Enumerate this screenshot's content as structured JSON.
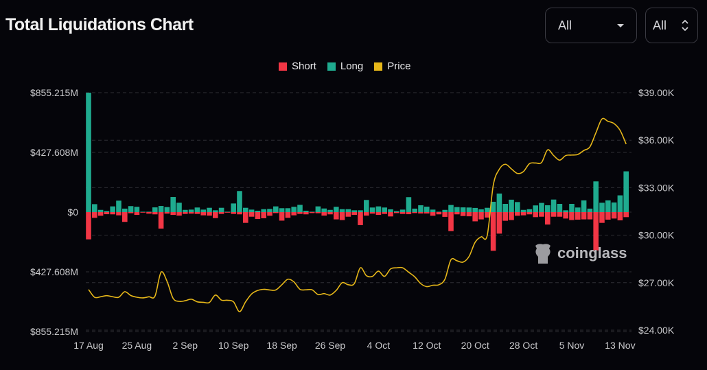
{
  "header": {
    "title": "Total Liquidations Chart"
  },
  "filters": [
    {
      "value": "All",
      "icon": "caret-down-icon"
    },
    {
      "value": "All",
      "icon": "chevron-up-down-icon"
    }
  ],
  "watermark": {
    "text": "coinglass",
    "icon": "coinglass-logo-icon"
  },
  "colors": {
    "short": "#f23645",
    "long": "#1fab8f",
    "price": "#e6b719",
    "background": "#05050a",
    "grid": "#2e2e34"
  },
  "chart_data": {
    "type": "bar",
    "title": "Total Liquidations Chart",
    "legend": {
      "position": "top",
      "entries": [
        "Short",
        "Long",
        "Price"
      ]
    },
    "grid": true,
    "y_left": {
      "ticks": [
        "$855.215M",
        "$427.608M",
        "$0",
        "$427.608M",
        "$855.215M"
      ],
      "ylim": [
        -855.215,
        855.215
      ],
      "unit": "M USD"
    },
    "y_right": {
      "ticks": [
        "$39.00K",
        "$36.00K",
        "$33.00K",
        "$30.00K",
        "$27.00K",
        "$24.00K"
      ],
      "ylim": [
        24000,
        39000
      ]
    },
    "x_ticks": [
      "17 Aug",
      "25 Aug",
      "2 Sep",
      "10 Sep",
      "18 Sep",
      "26 Sep",
      "4 Oct",
      "12 Oct",
      "20 Oct",
      "28 Oct",
      "5 Nov",
      "13 Nov"
    ],
    "categories": [
      "17 Aug",
      "18 Aug",
      "19 Aug",
      "20 Aug",
      "21 Aug",
      "22 Aug",
      "23 Aug",
      "24 Aug",
      "25 Aug",
      "26 Aug",
      "27 Aug",
      "28 Aug",
      "29 Aug",
      "30 Aug",
      "31 Aug",
      "1 Sep",
      "2 Sep",
      "3 Sep",
      "4 Sep",
      "5 Sep",
      "6 Sep",
      "7 Sep",
      "8 Sep",
      "9 Sep",
      "10 Sep",
      "11 Sep",
      "12 Sep",
      "13 Sep",
      "14 Sep",
      "15 Sep",
      "16 Sep",
      "17 Sep",
      "18 Sep",
      "19 Sep",
      "20 Sep",
      "21 Sep",
      "22 Sep",
      "23 Sep",
      "24 Sep",
      "25 Sep",
      "26 Sep",
      "27 Sep",
      "28 Sep",
      "29 Sep",
      "30 Sep",
      "1 Oct",
      "2 Oct",
      "3 Oct",
      "4 Oct",
      "5 Oct",
      "6 Oct",
      "7 Oct",
      "8 Oct",
      "9 Oct",
      "10 Oct",
      "11 Oct",
      "12 Oct",
      "13 Oct",
      "14 Oct",
      "15 Oct",
      "16 Oct",
      "17 Oct",
      "18 Oct",
      "19 Oct",
      "20 Oct",
      "21 Oct",
      "22 Oct",
      "23 Oct",
      "24 Oct",
      "25 Oct",
      "26 Oct",
      "27 Oct",
      "28 Oct",
      "29 Oct",
      "30 Oct",
      "31 Oct",
      "1 Nov",
      "2 Nov",
      "3 Nov",
      "4 Nov",
      "5 Nov",
      "6 Nov",
      "7 Nov",
      "8 Nov",
      "9 Nov",
      "10 Nov",
      "11 Nov",
      "12 Nov",
      "13 Nov",
      "14 Nov"
    ],
    "series": [
      {
        "name": "Long",
        "values": [
          855,
          57,
          16,
          8,
          41,
          82,
          25,
          43,
          38,
          3,
          3,
          34,
          44,
          36,
          108,
          67,
          16,
          18,
          33,
          18,
          31,
          13,
          31,
          3,
          62,
          151,
          31,
          18,
          10,
          21,
          23,
          41,
          28,
          28,
          38,
          52,
          10,
          3,
          41,
          26,
          16,
          38,
          21,
          21,
          13,
          13,
          87,
          33,
          41,
          33,
          20,
          7,
          18,
          107,
          25,
          49,
          39,
          18,
          3,
          16,
          51,
          36,
          34,
          33,
          30,
          20,
          31,
          74,
          133,
          59,
          89,
          72,
          16,
          21,
          48,
          66,
          49,
          90,
          59,
          13,
          59,
          33,
          84,
          25,
          220,
          67,
          84,
          69,
          120,
          292
        ]
      },
      {
        "name": "Short",
        "values": [
          195,
          41,
          26,
          15,
          16,
          23,
          70,
          8,
          20,
          3,
          11,
          16,
          118,
          11,
          20,
          25,
          13,
          11,
          13,
          23,
          25,
          43,
          13,
          3,
          13,
          16,
          77,
          33,
          49,
          44,
          26,
          7,
          61,
          41,
          23,
          13,
          16,
          7,
          8,
          25,
          16,
          52,
          57,
          33,
          20,
          93,
          25,
          11,
          20,
          13,
          31,
          7,
          13,
          15,
          7,
          10,
          10,
          26,
          16,
          34,
          136,
          16,
          28,
          30,
          66,
          52,
          39,
          277,
          154,
          62,
          57,
          26,
          23,
          16,
          36,
          33,
          89,
          33,
          33,
          46,
          57,
          54,
          52,
          52,
          274,
          77,
          54,
          46,
          59,
          36
        ]
      },
      {
        "name": "Price",
        "values": [
          26570,
          26080,
          26110,
          26180,
          26110,
          26080,
          26430,
          26190,
          26080,
          26040,
          26110,
          26150,
          27660,
          27080,
          26010,
          25820,
          25860,
          25960,
          25790,
          25760,
          25750,
          26220,
          25900,
          25890,
          25790,
          25170,
          25790,
          26290,
          26510,
          26580,
          26540,
          26540,
          26870,
          27220,
          27050,
          26580,
          26550,
          26550,
          26250,
          26310,
          26220,
          26510,
          27000,
          26870,
          26940,
          27940,
          27440,
          27400,
          27730,
          27400,
          27870,
          27940,
          27940,
          27660,
          27370,
          26940,
          26750,
          26840,
          26870,
          27220,
          28450,
          28380,
          28300,
          28660,
          29550,
          29900,
          29980,
          33150,
          34160,
          34480,
          34190,
          33900,
          34020,
          34520,
          34560,
          34590,
          35390,
          35030,
          34740,
          35030,
          35060,
          35100,
          35350,
          35580,
          36470,
          37340,
          37190,
          37050,
          36620,
          35750
        ]
      }
    ]
  }
}
